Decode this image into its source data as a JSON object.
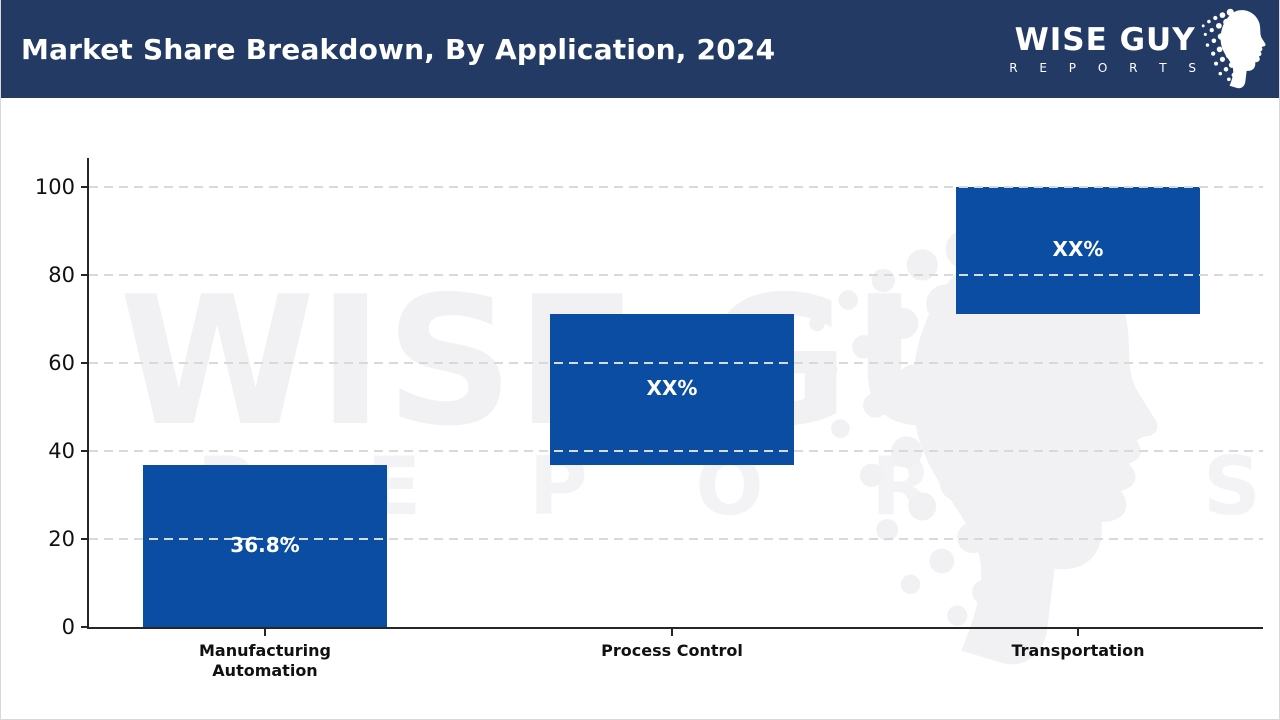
{
  "header": {
    "title": "Market Share Breakdown, By Application, 2024",
    "logo": {
      "line1": "WISE GUY",
      "line2": "R E P O R T S"
    }
  },
  "watermark": {
    "line1": "WISE GUY",
    "line2": "R E P O R T S"
  },
  "chart_data": {
    "type": "bar",
    "subtype": "stacked-waterfall",
    "title": "Market Share Breakdown, By Application, 2024",
    "categories": [
      "Manufacturing Automation",
      "Process Control",
      "Transportation"
    ],
    "segments": [
      {
        "category": "Manufacturing Automation",
        "start": 0,
        "end": 36.8,
        "label": "36.8%"
      },
      {
        "category": "Process Control",
        "start": 36.8,
        "end": 71.2,
        "label": "XX%"
      },
      {
        "category": "Transportation",
        "start": 71.2,
        "end": 100,
        "label": "XX%"
      }
    ],
    "y_ticks": [
      0,
      20,
      40,
      60,
      80,
      100
    ],
    "ylim": [
      0,
      100
    ],
    "xlabel": "",
    "ylabel": "",
    "grid": "horizontal-dashed",
    "legend": "none",
    "bar_color": "#0a4da2",
    "value_label_color": "#ffffff"
  },
  "colors": {
    "header_bg": "#223a64",
    "bar": "#0a4da2",
    "grid": "#d9d9d9",
    "axis": "#262626",
    "watermark": "#f1f1f3"
  }
}
